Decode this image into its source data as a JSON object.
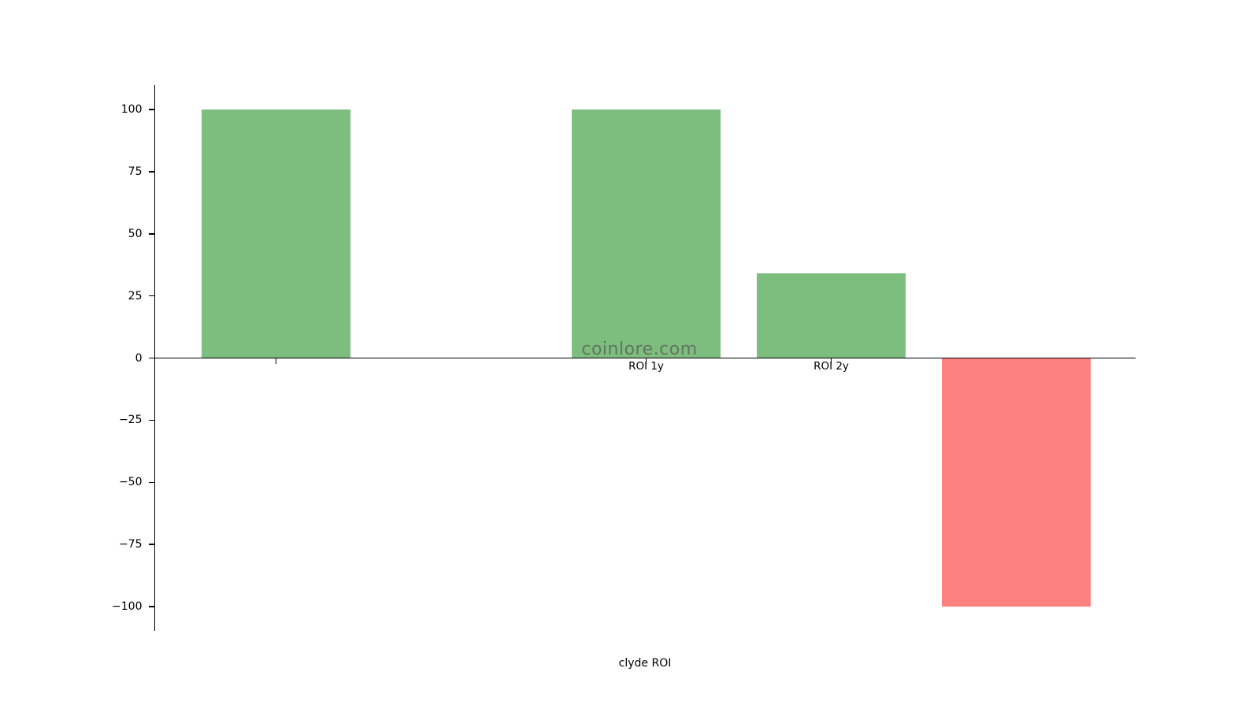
{
  "chart_data": {
    "type": "bar",
    "title": "",
    "xlabel": "clyde ROI",
    "ylabel": "",
    "watermark": "coinlore.com",
    "categories": [
      "",
      "ROI 1y",
      "ROI 2y",
      ""
    ],
    "values": [
      100,
      100,
      34,
      -100
    ],
    "bars": [
      {
        "label": "",
        "value": 100,
        "slot": 0,
        "tick": true
      },
      {
        "label": "ROI 1y",
        "value": 100,
        "slot": 2,
        "tick": true
      },
      {
        "label": "ROI 2y",
        "value": 34,
        "slot": 3,
        "tick": true
      },
      {
        "label": "",
        "value": -100,
        "slot": 4,
        "tick": false
      }
    ],
    "yticks": [
      100,
      75,
      50,
      25,
      0,
      -25,
      -50,
      -75,
      -100
    ],
    "ylim": [
      -110,
      110
    ],
    "grid": false,
    "legend": null,
    "colors": {
      "positive_bar": "#7dbd7e",
      "negative_bar": "#fe8181",
      "axis": "#000000",
      "watermark_gray": "#555555"
    }
  }
}
